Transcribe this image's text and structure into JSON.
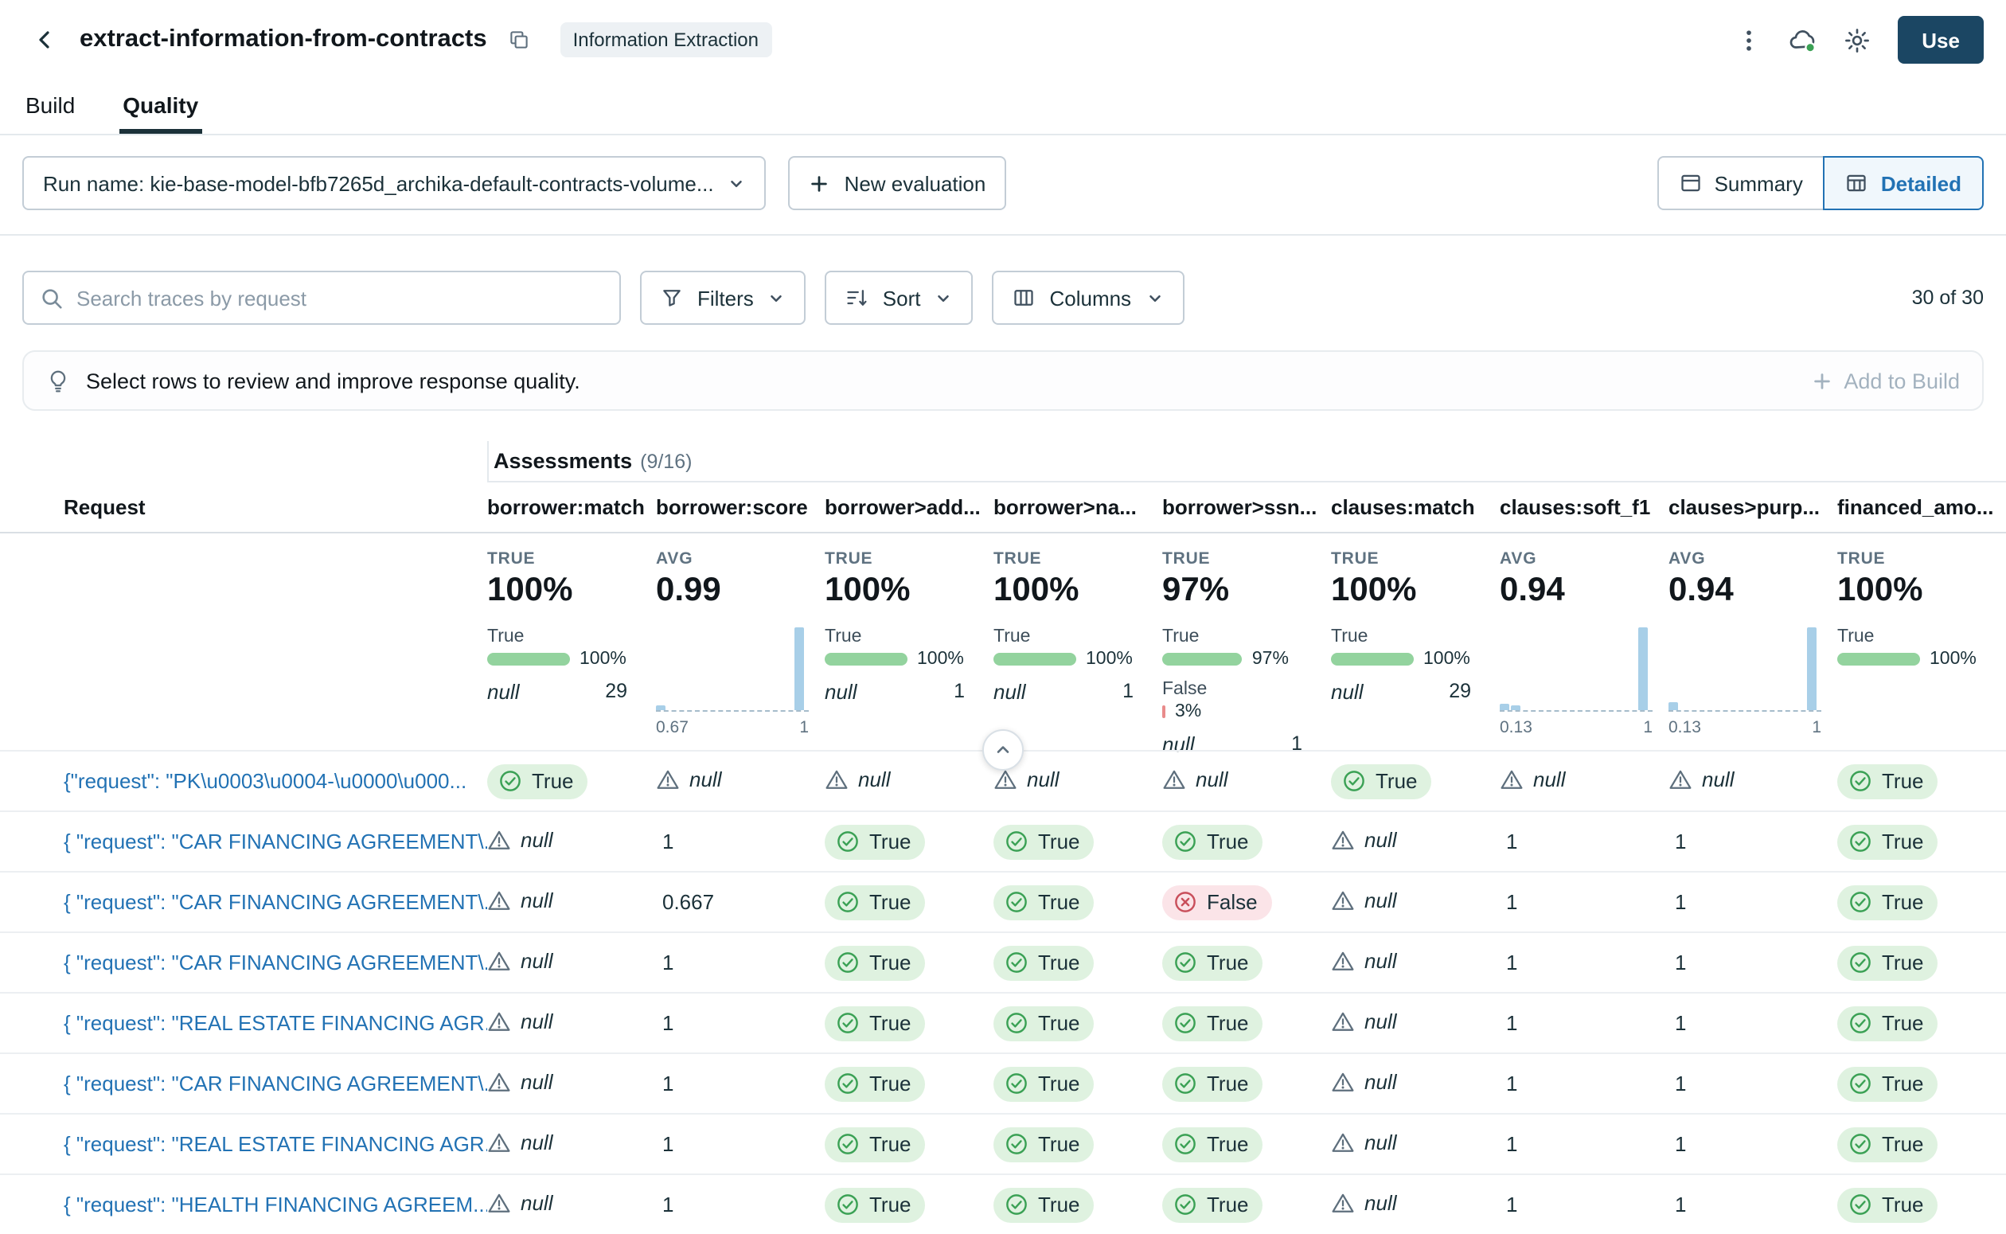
{
  "header": {
    "title": "extract-information-from-contracts",
    "badge": "Information Extraction",
    "use_button": "Use"
  },
  "tabs": [
    {
      "label": "Build",
      "active": false
    },
    {
      "label": "Quality",
      "active": true
    }
  ],
  "toolbar": {
    "run_selector": "Run name: kie-base-model-bfb7265d_archika-default-contracts-volume...",
    "new_evaluation": "New evaluation",
    "summary_button": "Summary",
    "detailed_button": "Detailed"
  },
  "filters_row": {
    "search_placeholder": "Search traces by request",
    "filters_label": "Filters",
    "sort_label": "Sort",
    "columns_label": "Columns",
    "count_text": "30 of 30"
  },
  "tip_banner": {
    "text": "Select rows to review and improve response quality.",
    "action_label": "Add to Build"
  },
  "table": {
    "assessments_label": "Assessments",
    "assessments_count": "(9/16)",
    "request_header": "Request",
    "cell_labels": {
      "true": "True",
      "false": "False",
      "null": "null"
    },
    "columns": [
      {
        "label": "borrower:match",
        "stat_label": "TRUE",
        "stat_value": "100%",
        "dist": [
          {
            "kind": "green",
            "label": "True",
            "pct": 100,
            "pct_label": "100%"
          },
          {
            "kind": "null",
            "count": "29"
          }
        ]
      },
      {
        "label": "borrower:score",
        "stat_label": "AVG",
        "stat_value": "0.99",
        "hist": {
          "min_label": "0.67",
          "max_label": "1",
          "bars": [
            {
              "x": 0.0,
              "h": 0.05
            },
            {
              "x": 0.97,
              "h": 1
            }
          ]
        }
      },
      {
        "label": "borrower>add...",
        "stat_label": "TRUE",
        "stat_value": "100%",
        "dist": [
          {
            "kind": "green",
            "label": "True",
            "pct": 100,
            "pct_label": "100%"
          },
          {
            "kind": "null",
            "count": "1"
          }
        ]
      },
      {
        "label": "borrower>na...",
        "stat_label": "TRUE",
        "stat_value": "100%",
        "dist": [
          {
            "kind": "green",
            "label": "True",
            "pct": 100,
            "pct_label": "100%"
          },
          {
            "kind": "null",
            "count": "1"
          }
        ]
      },
      {
        "label": "borrower>ssn...",
        "stat_label": "TRUE",
        "stat_value": "97%",
        "dist": [
          {
            "kind": "green",
            "label": "True",
            "pct": 97,
            "pct_label": "97%"
          },
          {
            "kind": "red",
            "label": "False",
            "pct": 3,
            "pct_label": "3%"
          },
          {
            "kind": "null",
            "count": "1"
          }
        ]
      },
      {
        "label": "clauses:match",
        "stat_label": "TRUE",
        "stat_value": "100%",
        "dist": [
          {
            "kind": "green",
            "label": "True",
            "pct": 100,
            "pct_label": "100%"
          },
          {
            "kind": "null",
            "count": "29"
          }
        ]
      },
      {
        "label": "clauses:soft_f1",
        "stat_label": "AVG",
        "stat_value": "0.94",
        "hist": {
          "min_label": "0.13",
          "max_label": "1",
          "bars": [
            {
              "x": 0.0,
              "h": 0.08
            },
            {
              "x": 0.08,
              "h": 0.05
            },
            {
              "x": 0.97,
              "h": 1
            }
          ]
        }
      },
      {
        "label": "clauses>purp...",
        "stat_label": "AVG",
        "stat_value": "0.94",
        "hist": {
          "min_label": "0.13",
          "max_label": "1",
          "bars": [
            {
              "x": 0.0,
              "h": 0.1
            },
            {
              "x": 0.97,
              "h": 1
            }
          ]
        }
      },
      {
        "label": "financed_amo...",
        "stat_label": "TRUE",
        "stat_value": "100%",
        "dist": [
          {
            "kind": "green",
            "label": "True",
            "pct": 100,
            "pct_label": "100%"
          }
        ]
      }
    ],
    "rows": [
      {
        "request": "{\"request\": \"PK\\u0003\\u0004-\\u0000\\u000...",
        "cells": [
          "true",
          "null",
          "null",
          "null",
          "null",
          "true",
          "null",
          "null",
          "true"
        ]
      },
      {
        "request": "{ \"request\": \"CAR FINANCING AGREEMENT\\...",
        "cells": [
          "null",
          "1",
          "true",
          "true",
          "true",
          "null",
          "1",
          "1",
          "true"
        ]
      },
      {
        "request": "{ \"request\": \"CAR FINANCING AGREEMENT\\...",
        "cells": [
          "null",
          "0.667",
          "true",
          "true",
          "false",
          "null",
          "1",
          "1",
          "true"
        ]
      },
      {
        "request": "{ \"request\": \"CAR FINANCING AGREEMENT\\...",
        "cells": [
          "null",
          "1",
          "true",
          "true",
          "true",
          "null",
          "1",
          "1",
          "true"
        ]
      },
      {
        "request": "{ \"request\": \"REAL ESTATE FINANCING AGR...",
        "cells": [
          "null",
          "1",
          "true",
          "true",
          "true",
          "null",
          "1",
          "1",
          "true"
        ]
      },
      {
        "request": "{ \"request\": \"CAR FINANCING AGREEMENT\\...",
        "cells": [
          "null",
          "1",
          "true",
          "true",
          "true",
          "null",
          "1",
          "1",
          "true"
        ]
      },
      {
        "request": "{ \"request\": \"REAL ESTATE FINANCING AGR...",
        "cells": [
          "null",
          "1",
          "true",
          "true",
          "true",
          "null",
          "1",
          "1",
          "true"
        ]
      },
      {
        "request": "{ \"request\": \"HEALTH FINANCING AGREEM...",
        "cells": [
          "null",
          "1",
          "true",
          "true",
          "true",
          "null",
          "1",
          "1",
          "true"
        ]
      }
    ]
  },
  "colors": {
    "accent": "#2272B4",
    "green_bar": "#93D39E",
    "blue_bar": "#A8CFE8",
    "red_bar": "#E98B8B",
    "pill_green_bg": "#DFF2E0",
    "pill_red_bg": "#FBE4E8",
    "use_button_bg": "#1B4663",
    "tab_underline": "#1B3139"
  }
}
